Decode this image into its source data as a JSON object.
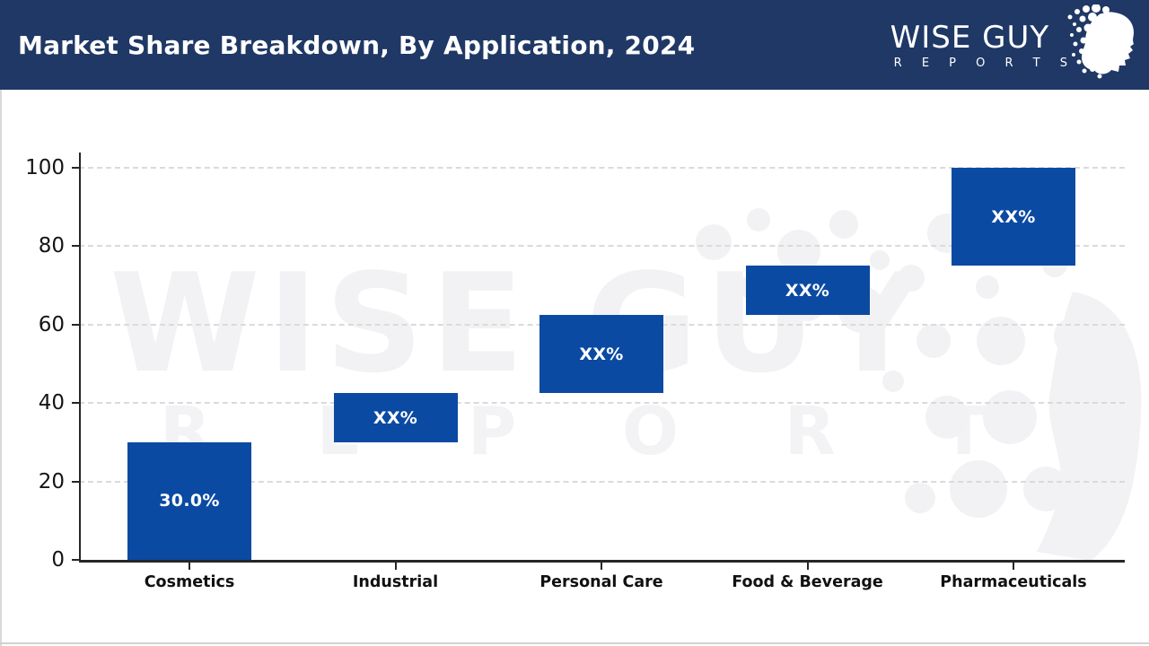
{
  "header": {
    "title": "Market Share Breakdown, By Application, 2024",
    "logo": {
      "brand": "WISE GUY",
      "sub": "R E P O R T S"
    }
  },
  "watermark": {
    "brand": "WISE GUY",
    "sub": "R E P O R T S"
  },
  "chart_data": {
    "type": "bar",
    "subtype": "waterfall",
    "title": "Market Share Breakdown, By Application, 2024",
    "categories": [
      "Cosmetics",
      "Industrial",
      "Personal Care",
      "Food & Beverage",
      "Pharmaceuticals"
    ],
    "segments": [
      {
        "category": "Cosmetics",
        "start": 0,
        "end": 30,
        "label": "30.0%"
      },
      {
        "category": "Industrial",
        "start": 30,
        "end": 42.5,
        "label": "XX%"
      },
      {
        "category": "Personal Care",
        "start": 42.5,
        "end": 62.5,
        "label": "XX%"
      },
      {
        "category": "Food & Beverage",
        "start": 62.5,
        "end": 75,
        "label": "XX%"
      },
      {
        "category": "Pharmaceuticals",
        "start": 75,
        "end": 100,
        "label": "XX%"
      }
    ],
    "y_ticks": [
      0,
      20,
      40,
      60,
      80,
      100
    ],
    "ylim": [
      0,
      104
    ],
    "xlabel": "",
    "ylabel": "",
    "grid": "horizontal-dashed",
    "legend": "none",
    "bar_color": "#0b4aa2",
    "value_label_color": "#ffffff"
  },
  "colors": {
    "header_bg": "#1f3865",
    "bar": "#0b4aa2",
    "grid": "#dadada",
    "axis": "#262626",
    "tick_text": "#151515",
    "watermark": "#f2f2f4",
    "background": "#ffffff"
  }
}
